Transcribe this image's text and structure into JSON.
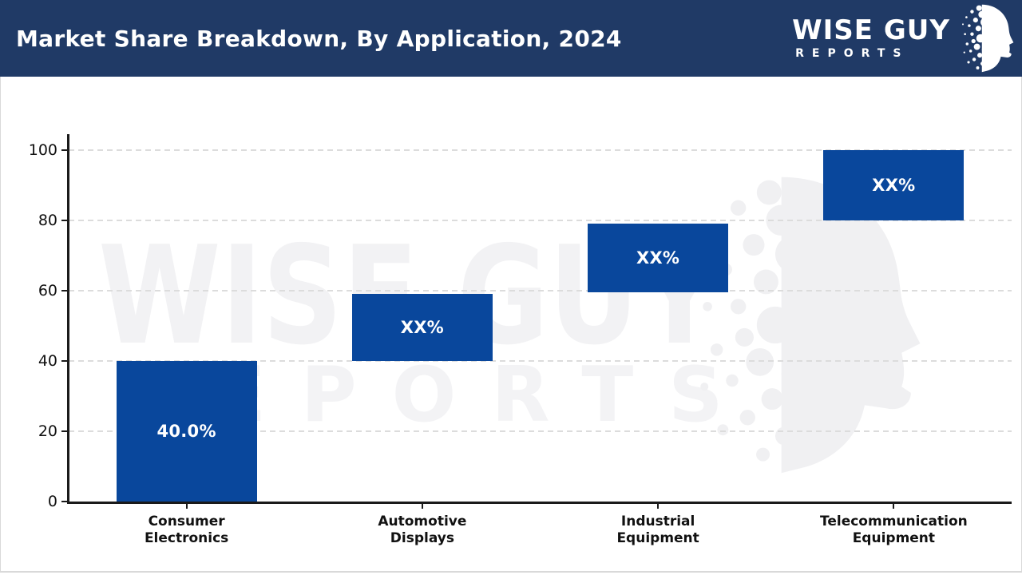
{
  "header": {
    "title": "Market Share Breakdown, By Application, 2024",
    "logo": {
      "line1": "WISE GUY",
      "line2": "REPORTS"
    },
    "bg_color": "#203A66"
  },
  "watermark": {
    "line1": "WISE GUY",
    "line2": "REPORTS"
  },
  "chart_data": {
    "type": "bar",
    "variant": "waterfall-segment",
    "title": "Market Share Breakdown, By Application, 2024",
    "xlabel": "",
    "ylabel": "",
    "categories": [
      "Consumer\nElectronics",
      "Automotive\nDisplays",
      "Industrial\nEquipment",
      "Telecommunication\nEquipment"
    ],
    "bars": [
      {
        "category": "Consumer Electronics",
        "start": 0,
        "end": 40,
        "label": "40.0%"
      },
      {
        "category": "Automotive Displays",
        "start": 40,
        "end": 59,
        "label": "XX%"
      },
      {
        "category": "Industrial Equipment",
        "start": 59.5,
        "end": 79,
        "label": "XX%"
      },
      {
        "category": "Telecommunication Equipment",
        "start": 80,
        "end": 100,
        "label": "XX%"
      }
    ],
    "yticks": [
      0,
      20,
      40,
      60,
      80,
      100
    ],
    "ylim": [
      0,
      104
    ],
    "bar_color": "#09479C",
    "bar_label_color": "#ffffff",
    "grid": true,
    "grid_style": "dashed",
    "legend": false
  }
}
